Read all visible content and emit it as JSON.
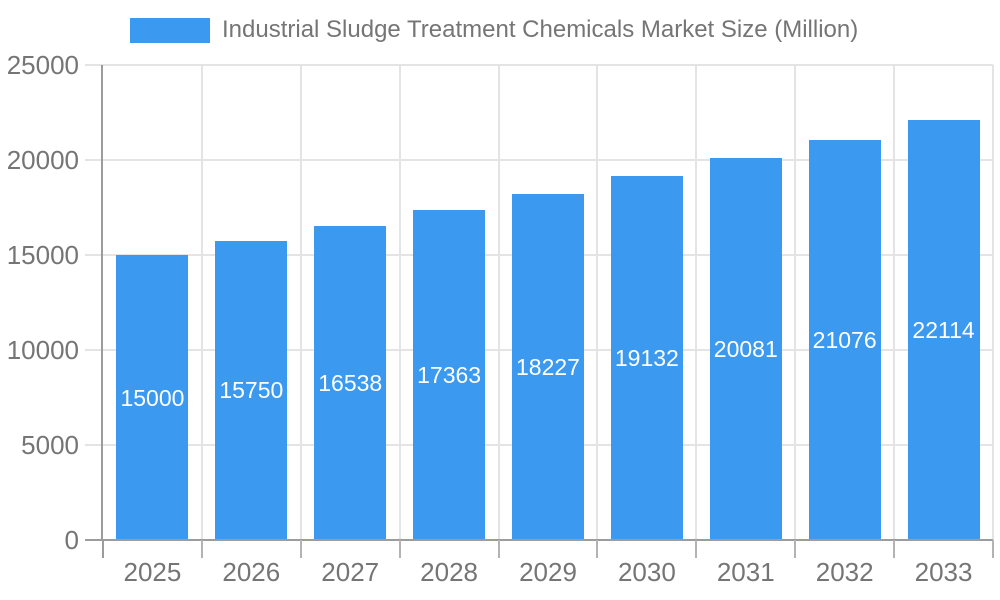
{
  "legend": {
    "label": "Industrial Sludge Treatment Chemicals Market Size (Million)",
    "swatch_color": "#3B99F0"
  },
  "chart_data": {
    "type": "bar",
    "title": "Industrial Sludge Treatment Chemicals Market Size (Million)",
    "categories": [
      "2025",
      "2026",
      "2027",
      "2028",
      "2029",
      "2030",
      "2031",
      "2032",
      "2033"
    ],
    "values": [
      15000,
      15750,
      16538,
      17363,
      18227,
      19132,
      20081,
      21076,
      22114
    ],
    "bar_labels": [
      "15000",
      "15750",
      "16538",
      "17363",
      "18227",
      "19132",
      "20081",
      "21076",
      "22114"
    ],
    "xlabel": "",
    "ylabel": "",
    "ylim": [
      0,
      25000
    ],
    "yticks": [
      0,
      5000,
      10000,
      15000,
      20000,
      25000
    ],
    "ytick_labels": [
      "0",
      "5000",
      "10000",
      "15000",
      "20000",
      "25000"
    ],
    "grid": true,
    "legend_position": "top"
  },
  "colors": {
    "bar": "#3B99F0",
    "bar_label_text": "#FFFFFF",
    "axis_text": "#757575",
    "grid_line": "#E4E4E4",
    "axis_line": "#9C9C9C",
    "minor_tick": "#B3B3B3",
    "background": "#FFFFFF"
  }
}
